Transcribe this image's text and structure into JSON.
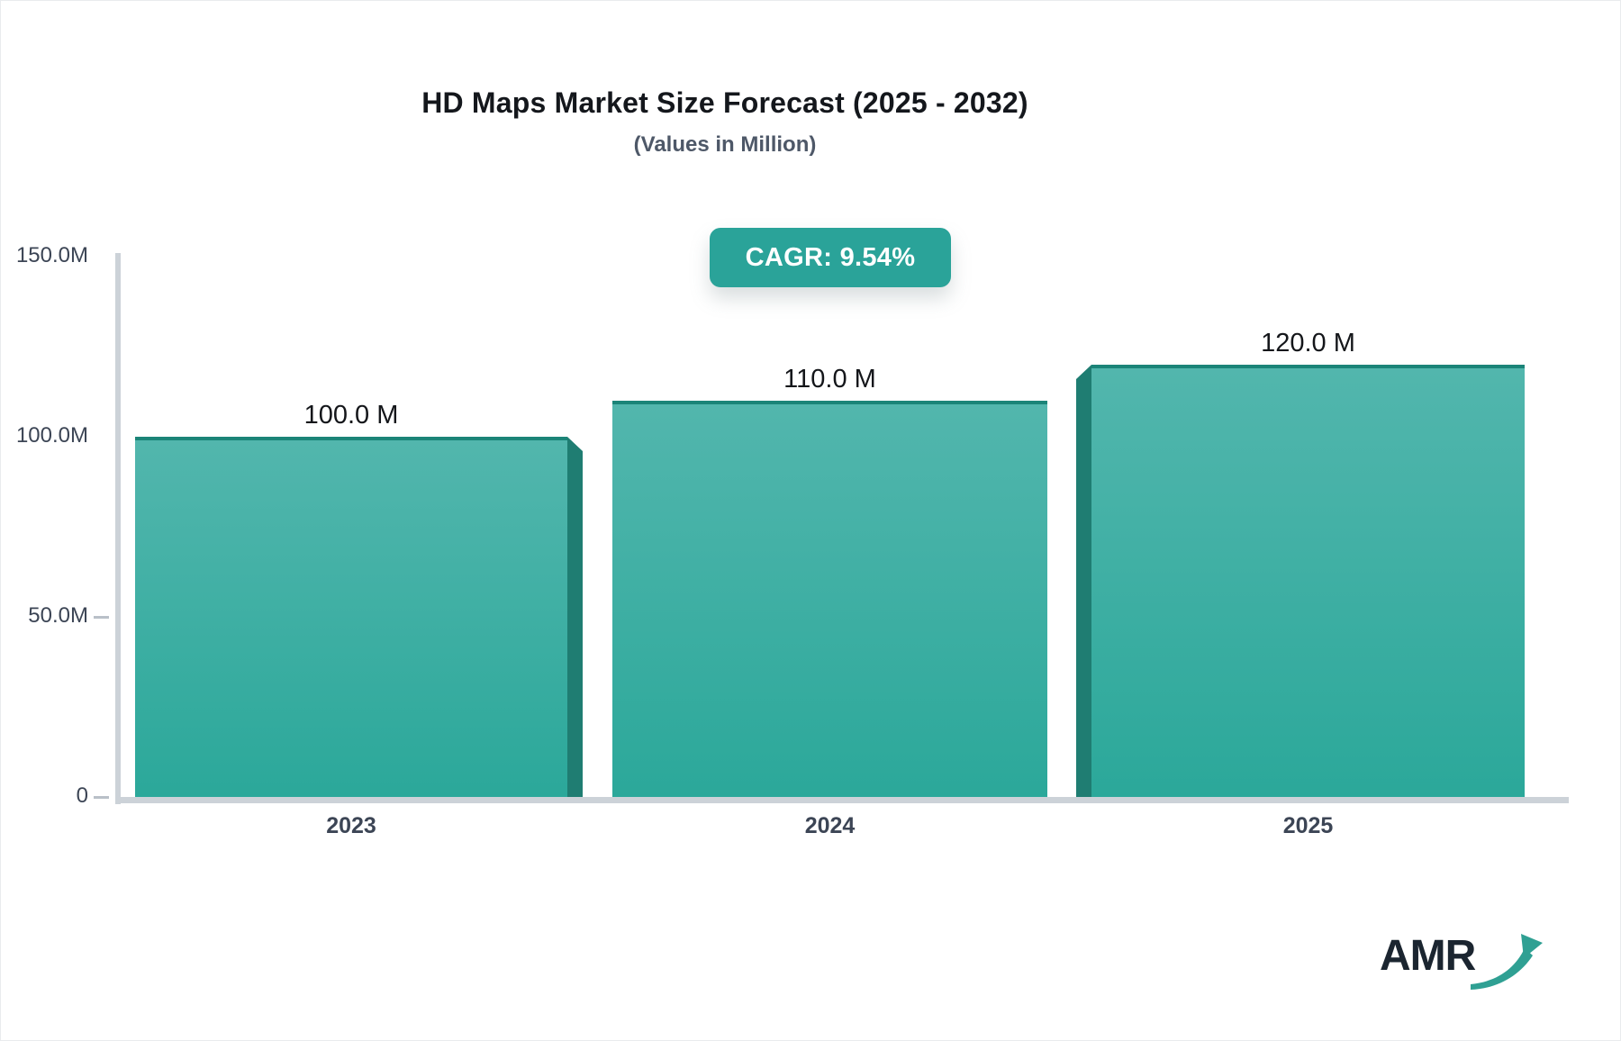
{
  "header": {
    "title": "HD Maps Market Size Forecast (2025 - 2032)",
    "subtitle": "(Values in Million)",
    "cagr_badge": "CAGR: 9.54%"
  },
  "chart_data": {
    "type": "bar",
    "title": "HD Maps Market Size Forecast (2025 - 2032)",
    "subtitle": "(Values in Million)",
    "unit": "Million",
    "cagr_percent": 9.54,
    "categories": [
      "2023",
      "2024",
      "2025"
    ],
    "values": [
      100.0,
      110.0,
      120.0
    ],
    "value_labels": [
      "100.0 M",
      "110.0 M",
      "120.0 M"
    ],
    "ylim": [
      0,
      150
    ],
    "yticks": [
      {
        "label": "150.0M",
        "value": 150,
        "dash": false
      },
      {
        "label": "100.0M",
        "value": 100,
        "dash": false
      },
      {
        "label": "50.0M",
        "value": 50,
        "dash": true
      },
      {
        "label": "0",
        "value": 0,
        "dash": true
      }
    ],
    "grid": false,
    "legend": null,
    "bar_style": "3d teal gradient bars"
  },
  "colors": {
    "bar_top": "#52b6ad",
    "bar_bottom": "#2ba89a",
    "bar_edge": "#1b8478",
    "bar_side": "#1f7d72",
    "badge_bg": "#2aa399",
    "axis_line": "#ccd2d8",
    "tick_text": "#3c4555",
    "title_text": "#14171c",
    "subtitle_text": "#4e5868",
    "logo_text": "#1b2530",
    "logo_arrow": "#2fa093"
  },
  "logo": {
    "text": "AMR"
  }
}
